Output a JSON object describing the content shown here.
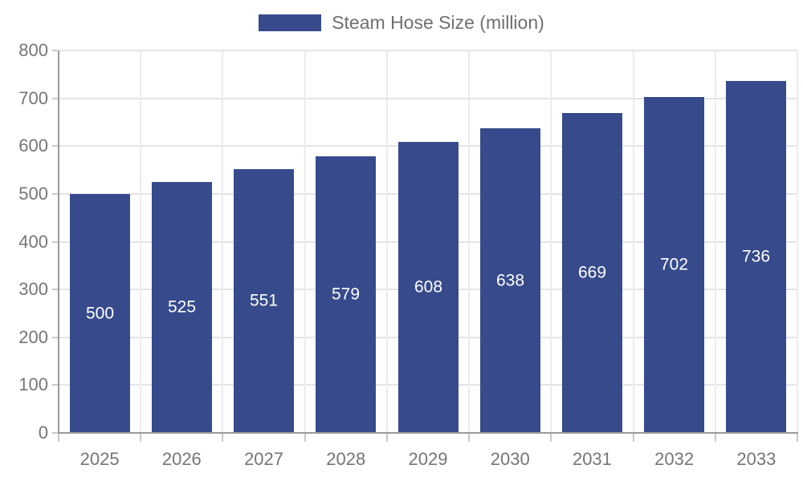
{
  "chart_data": {
    "type": "bar",
    "title": "",
    "xlabel": "",
    "ylabel": "",
    "legend": {
      "label": "Steam Hose Size (million)",
      "position": "top-center"
    },
    "categories": [
      "2025",
      "2026",
      "2027",
      "2028",
      "2029",
      "2030",
      "2031",
      "2032",
      "2033"
    ],
    "values": [
      500,
      525,
      551,
      579,
      608,
      638,
      669,
      702,
      736
    ],
    "series_name": "Steam Hose Size (million)",
    "ylim": [
      0,
      800
    ],
    "ytick_interval": 100,
    "yticks": [
      "0",
      "100",
      "200",
      "300",
      "400",
      "500",
      "600",
      "700",
      "800"
    ],
    "grid": true,
    "data_labels_shown": true,
    "colors": {
      "bar": "#374B8C",
      "bar_value_label": "#ffffff",
      "axis_label_text": "#757575",
      "legend_text": "#6f6f6f",
      "gridline": "#e4e4e8",
      "axis_line": "#9a9a9a"
    }
  }
}
